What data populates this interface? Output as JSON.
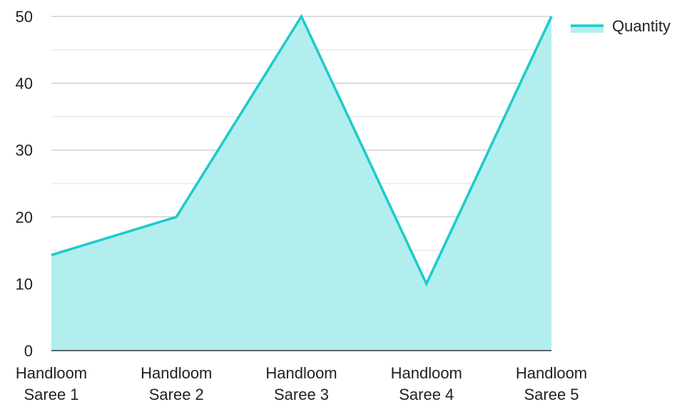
{
  "chart_data": {
    "type": "area",
    "title": "",
    "xlabel": "",
    "ylabel": "",
    "categories": [
      [
        "Handloom",
        "Saree 1"
      ],
      [
        "Handloom",
        "Saree 2"
      ],
      [
        "Handloom",
        "Saree 3"
      ],
      [
        "Handloom",
        "Saree 4"
      ],
      [
        "Handloom",
        "Saree 5"
      ]
    ],
    "series": [
      {
        "name": "Quantity",
        "values": [
          14.3,
          20,
          50,
          10,
          50
        ]
      }
    ],
    "ylim": [
      0,
      50
    ],
    "yticks": [
      "0",
      "10",
      "20",
      "30",
      "40",
      "50"
    ],
    "grid": true,
    "legend": "top-right",
    "colors": {
      "line": "#1ccbc9",
      "fill": "#b2eeee",
      "grid_major": "#bdbdbd",
      "grid_minor": "#e2e2e2",
      "axis": "#333333"
    }
  }
}
